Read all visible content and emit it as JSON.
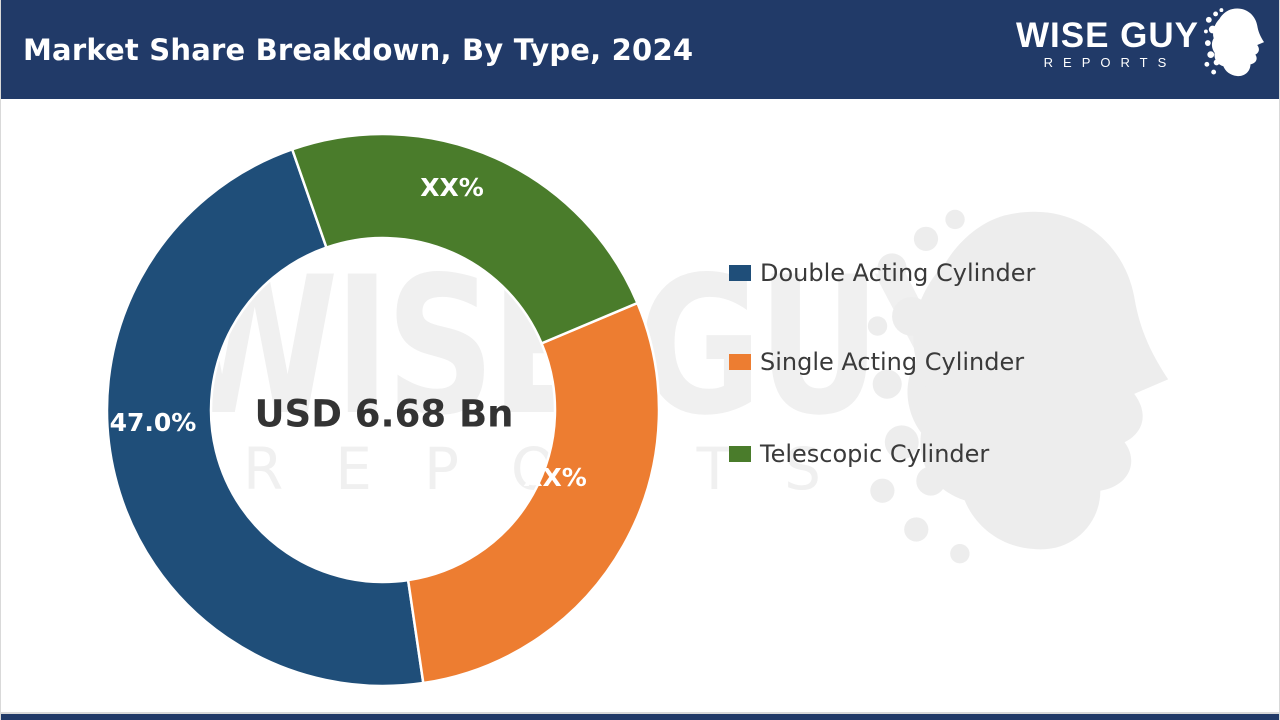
{
  "chart_data": {
    "type": "donut",
    "title": "Market Share Breakdown, By Type, 2024",
    "center_label": "USD 6.68 Bn",
    "start_angle_deg": 109.2,
    "direction": "counterclockwise",
    "legend_position": "right",
    "series": [
      {
        "name": "Double Acting Cylinder",
        "value": 47,
        "display_label": "47.0%",
        "color": "#1f4e79"
      },
      {
        "name": "Single Acting Cylinder",
        "value": 29,
        "display_label": "XX%",
        "color": "#ed7d31"
      },
      {
        "name": "Telescopic Cylinder",
        "value": 24,
        "display_label": "XX%",
        "color": "#4a7c2b"
      }
    ]
  },
  "header": {
    "logo": {
      "brand": "WISE GUY",
      "sub": "REPORTS"
    }
  },
  "watermark": {
    "brand": "WISE GUY",
    "sub": "REPORTS"
  }
}
